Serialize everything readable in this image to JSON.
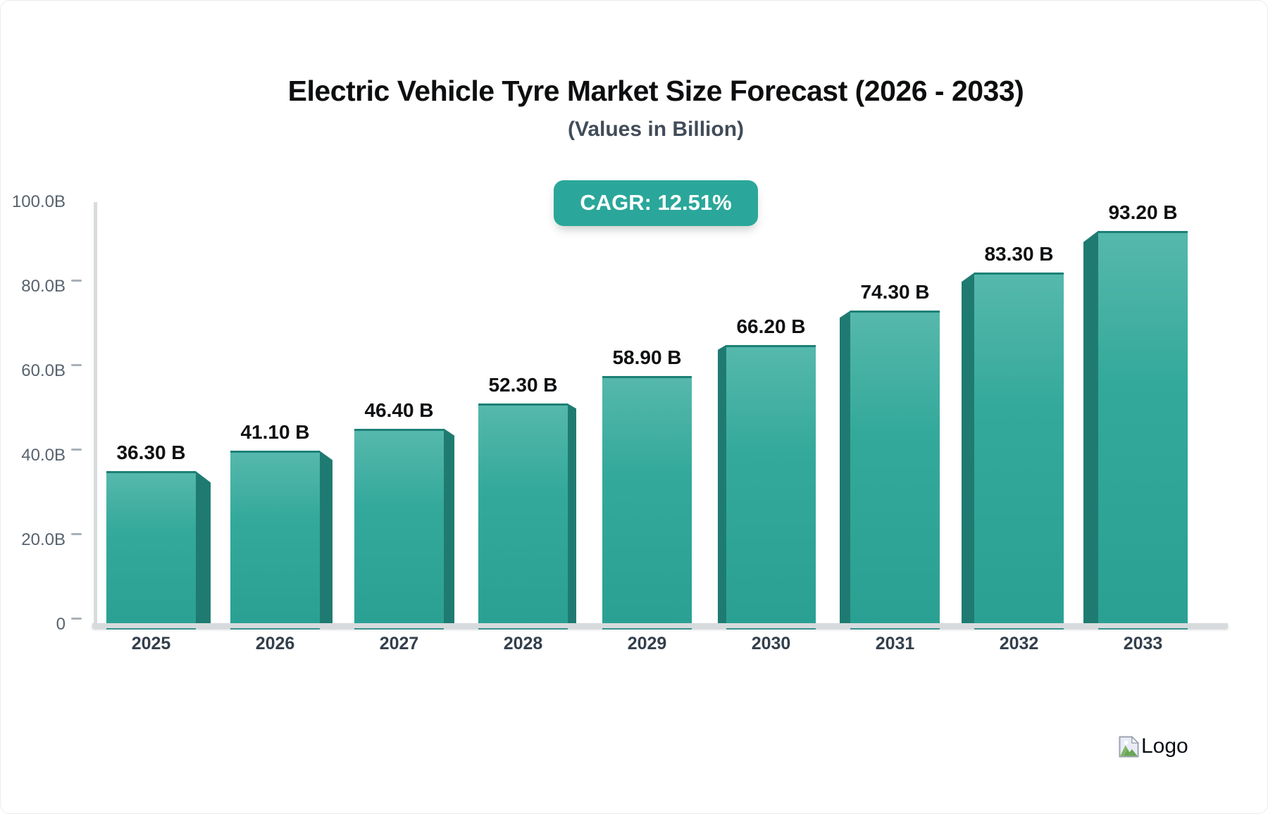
{
  "header": {
    "title": "Electric Vehicle Tyre Market Size Forecast (2026 - 2033)",
    "subtitle": "(Values in Billion)",
    "cagr_badge": "CAGR: 12.51%"
  },
  "chart_data": {
    "type": "bar",
    "title": "Electric Vehicle Tyre Market Size Forecast (2026 - 2033)",
    "subtitle": "(Values in Billion)",
    "annotation": "CAGR: 12.51%",
    "categories": [
      "2025",
      "2026",
      "2027",
      "2028",
      "2029",
      "2030",
      "2031",
      "2032",
      "2033"
    ],
    "values": [
      36.3,
      41.1,
      46.4,
      52.3,
      58.9,
      66.2,
      74.3,
      83.3,
      93.2
    ],
    "value_labels": [
      "36.30 B",
      "41.10 B",
      "46.40 B",
      "52.30 B",
      "58.90 B",
      "66.20 B",
      "74.30 B",
      "83.30 B",
      "93.20 B"
    ],
    "unit": "Billion",
    "xlabel": "",
    "ylabel": "",
    "ylim": [
      0,
      100
    ],
    "yticks": [
      {
        "label": "0",
        "value": 0
      },
      {
        "label": "20.0B",
        "value": 20
      },
      {
        "label": "40.0B",
        "value": 40
      },
      {
        "label": "60.0B",
        "value": 60
      },
      {
        "label": "80.0B",
        "value": 80
      },
      {
        "label": "100.0B",
        "value": 100
      }
    ],
    "grid": "off",
    "legend_position": "none",
    "bar_style": "3d-perspective-center-vanishing"
  },
  "colors": {
    "bar_face_top": "#56b8ac",
    "bar_face_mid": "#33a99b",
    "bar_face_bottom": "#2aa093",
    "bar_side": "#1f7b71",
    "bar_top_edge": "#1d8076",
    "badge_bg": "#2aa79a",
    "badge_text": "#ffffff",
    "axis_line": "#d8dbde",
    "tick_dash": "#a9b1b9",
    "ytick_text": "#57636f",
    "xtick_text": "#333f4c",
    "value_text": "#0e1012",
    "title_text": "#0d0e10",
    "subtitle_text": "#414c59"
  },
  "footer": {
    "logo_alt": "Logo"
  }
}
